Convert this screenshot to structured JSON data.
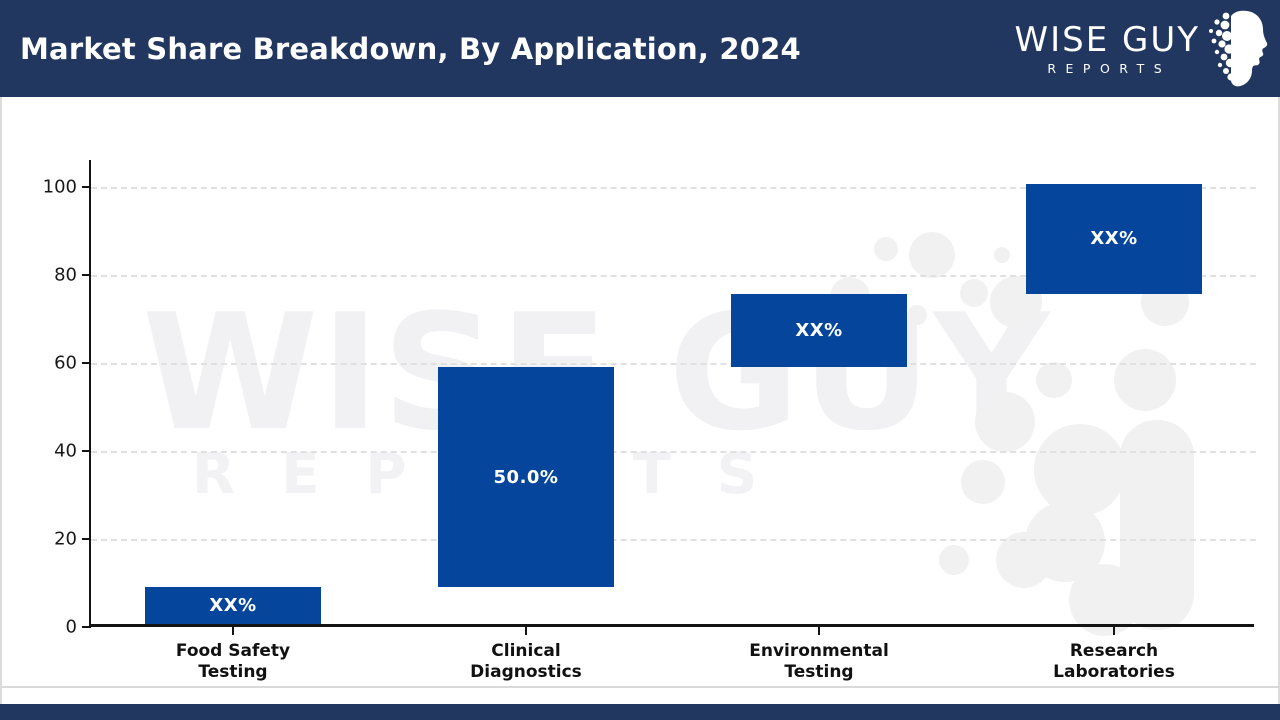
{
  "header": {
    "title": "Market Share Breakdown, By Application, 2024",
    "logo": {
      "line1": "WISE GUY",
      "line2": "REPORTS"
    }
  },
  "watermark": {
    "line1": "WISE GUY",
    "line2": "REPORTS"
  },
  "colors": {
    "header_bg": "#213760",
    "bar": "#05459c",
    "bar_label": "#ffffff",
    "axis": "#141414",
    "gridline": "#e0e0e0",
    "watermark": "#f1f1f3",
    "footer_bg": "#213760"
  },
  "chart_data": {
    "type": "bar",
    "subtype": "floating-waterfall",
    "title": "Market Share Breakdown, By Application, 2024",
    "categories": [
      [
        "Food Safety",
        "Testing"
      ],
      [
        "Clinical",
        "Diagnostics"
      ],
      [
        "Environmental",
        "Testing"
      ],
      [
        "Research",
        "Laboratories"
      ]
    ],
    "segments": [
      {
        "start": 0,
        "end": 8.3,
        "label": "XX%"
      },
      {
        "start": 8.3,
        "end": 58.3,
        "label": "50.0%"
      },
      {
        "start": 58.3,
        "end": 75.0,
        "label": "XX%"
      },
      {
        "start": 75.0,
        "end": 100.0,
        "label": "XX%"
      }
    ],
    "ylim": [
      0,
      100
    ],
    "yticks": [
      0,
      20,
      40,
      60,
      80,
      100
    ],
    "xlabel": "",
    "ylabel": "",
    "grid": "horizontal-dashed",
    "legend": "none"
  }
}
